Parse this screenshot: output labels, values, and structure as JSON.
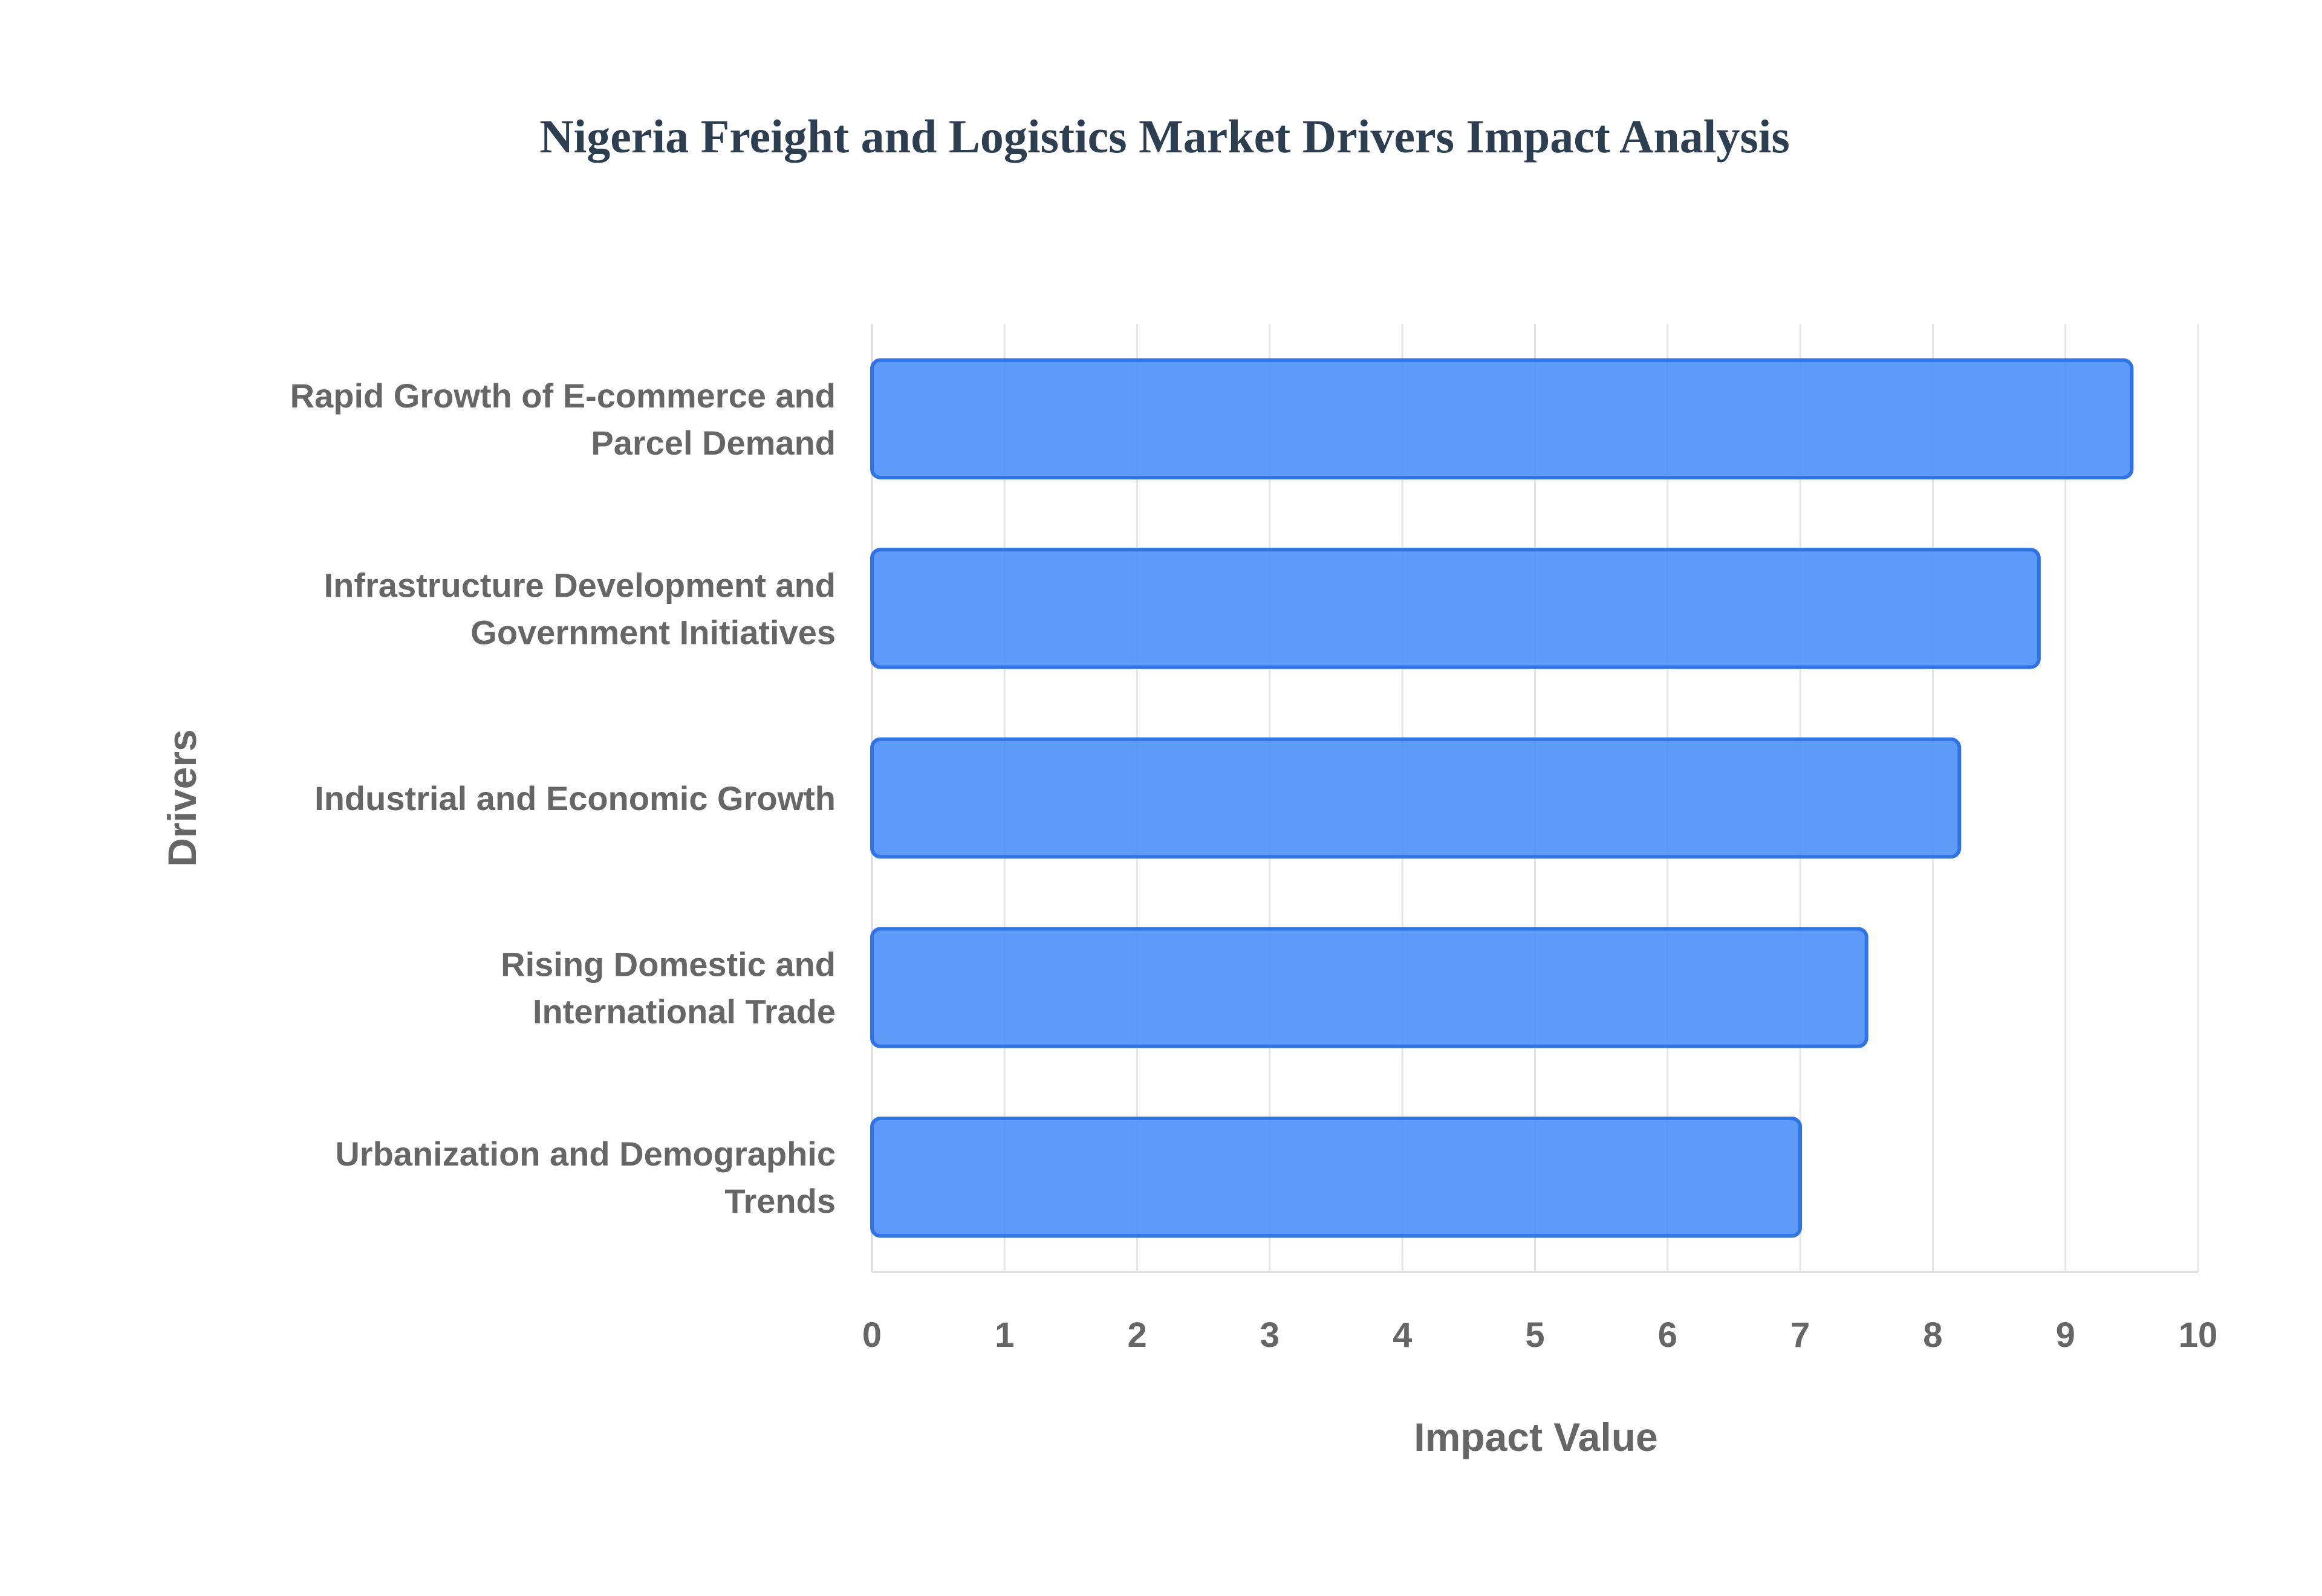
{
  "colors": {
    "bar_fill": "#4d8ff7",
    "bar_stroke": "#2f74e6"
  },
  "chart_data": {
    "type": "bar",
    "orientation": "horizontal",
    "title": "Nigeria Freight and Logistics Market Drivers Impact Analysis",
    "xlabel": "Impact Value",
    "ylabel": "Drivers",
    "xlim": [
      0,
      10
    ],
    "xticks": [
      "0",
      "1",
      "2",
      "3",
      "4",
      "5",
      "6",
      "7",
      "8",
      "9",
      "10"
    ],
    "grid": true,
    "categories": [
      [
        "Rapid Growth of E-commerce and",
        "Parcel Demand"
      ],
      [
        "Infrastructure Development and",
        "Government Initiatives"
      ],
      [
        "Industrial and Economic Growth"
      ],
      [
        "Rising Domestic and",
        "International Trade"
      ],
      [
        "Urbanization and Demographic",
        "Trends"
      ]
    ],
    "values": [
      9.5,
      8.8,
      8.2,
      7.5,
      7.0
    ]
  }
}
